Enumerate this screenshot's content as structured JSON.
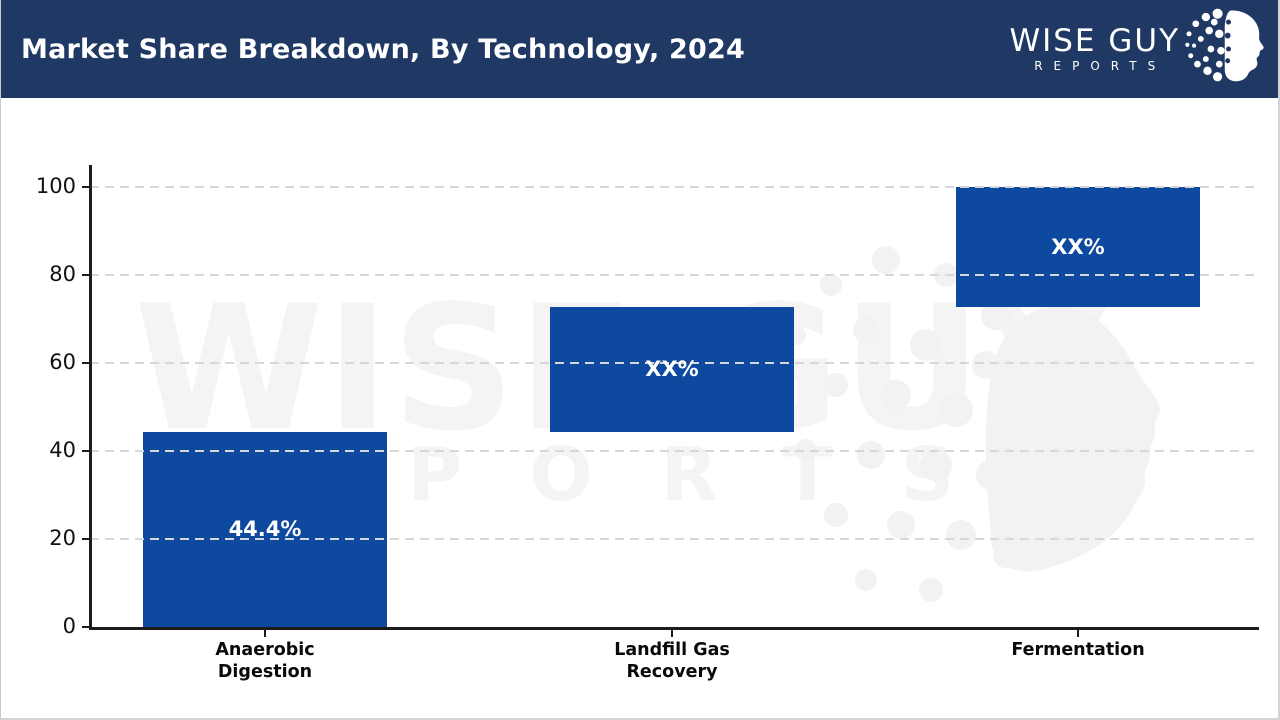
{
  "header": {
    "title": "Market Share Breakdown, By Technology, 2024",
    "logo": {
      "name": "Wise Guy Reports",
      "line1": "WISE GUY",
      "line2": "REPORTS"
    }
  },
  "watermark": {
    "line1": "WISE GUY",
    "line2": "REPORTS"
  },
  "colors": {
    "header_bg": "#1f3864",
    "bar": "#0d4a9f",
    "grid": "#d7d7d7",
    "axis": "#1c1c1c",
    "bar_label": "#ffffff",
    "watermark": "#f4f4f4"
  },
  "chart_data": {
    "type": "bar",
    "subtype": "waterfall-cumulative",
    "title": "Market Share Breakdown, By Technology, 2024",
    "categories": [
      "Anaerobic Digestion",
      "Landfill Gas Recovery",
      "Fermentation"
    ],
    "category_lines": [
      [
        "Anaerobic",
        "Digestion"
      ],
      [
        "Landfill Gas",
        "Recovery"
      ],
      [
        "Fermentation"
      ]
    ],
    "segments": [
      {
        "category": "Anaerobic Digestion",
        "start": 0,
        "end": 44.4,
        "label": "44.4%"
      },
      {
        "category": "Landfill Gas Recovery",
        "start": 44.4,
        "end": 72.8,
        "label": "XX%"
      },
      {
        "category": "Fermentation",
        "start": 72.8,
        "end": 100,
        "label": "XX%"
      }
    ],
    "xlabel": "",
    "ylabel": "",
    "ylim": [
      0,
      100
    ],
    "yticks": [
      0,
      20,
      40,
      60,
      80,
      100
    ],
    "grid": "horizontal-dashed",
    "legend": "none"
  }
}
